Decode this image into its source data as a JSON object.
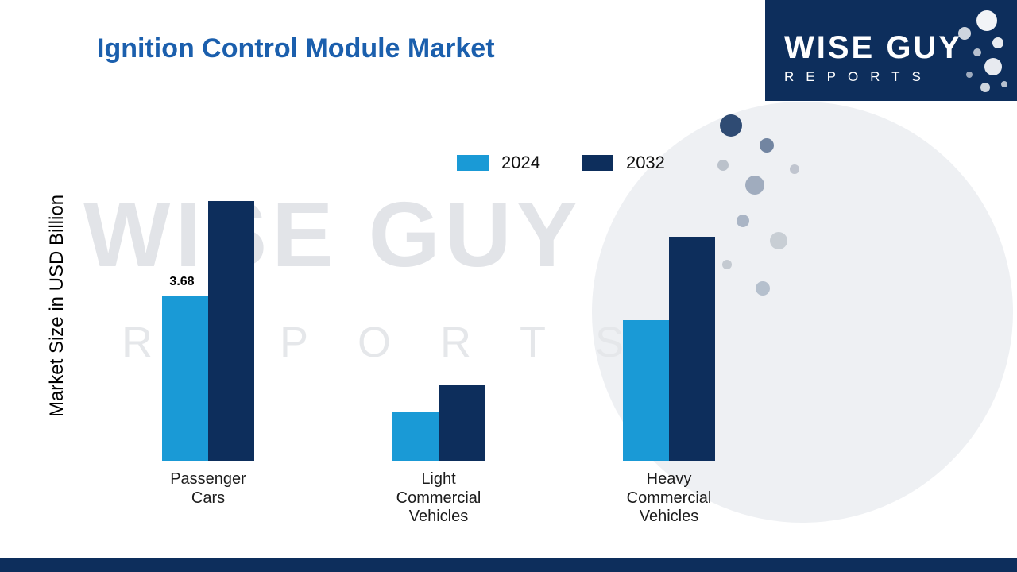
{
  "page": {
    "title": "Ignition Control Module Market"
  },
  "logo": {
    "line1": "WISE GUY",
    "line2": "REPORTS"
  },
  "watermark": {
    "line1": "WISE GUY",
    "line2": "REPORTS"
  },
  "colors": {
    "title_blue": "#1b5fad",
    "navy": "#0d2e5c",
    "light_blue": "#1a9ad6",
    "watermark_gray": "#e2e4e8",
    "background": "#ffffff"
  },
  "chart_data": {
    "type": "bar",
    "title": "Ignition Control Module Market",
    "xlabel": "",
    "ylabel": "Market Size in USD Billion",
    "categories": [
      "Passenger Cars",
      "Light Commercial Vehicles",
      "Heavy Commercial Vehicles"
    ],
    "series": [
      {
        "name": "2024",
        "color": "#1a9ad6",
        "values": [
          3.68,
          1.1,
          3.15
        ]
      },
      {
        "name": "2032",
        "color": "#0d2e5c",
        "values": [
          5.8,
          1.7,
          5.0
        ]
      }
    ],
    "value_labels": [
      {
        "series": "2024",
        "category": "Passenger Cars",
        "text": "3.68"
      }
    ],
    "ylim": [
      0,
      7
    ],
    "grid": false,
    "axes_hidden": true,
    "legend_position": "top"
  }
}
